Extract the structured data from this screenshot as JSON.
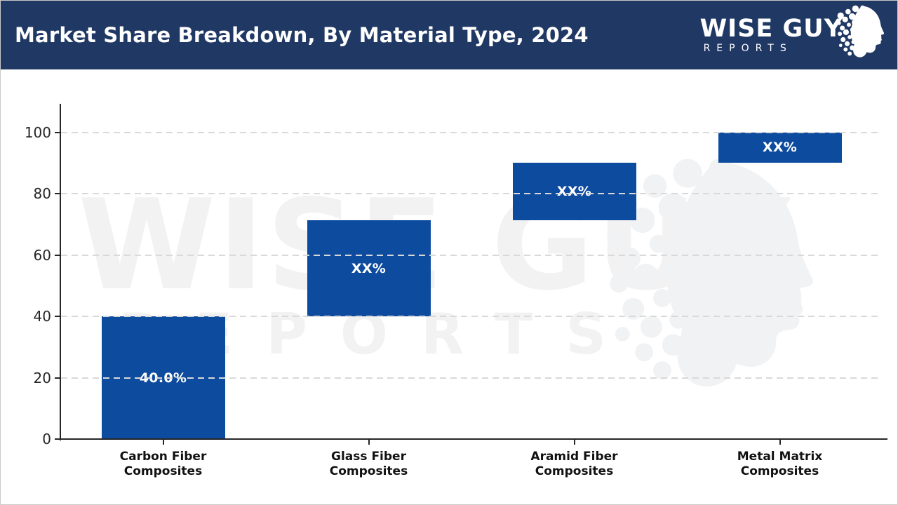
{
  "header": {
    "title": "Market Share Breakdown, By Material Type, 2024",
    "bg_color": "#203864",
    "brand": {
      "name": "WISE GUY",
      "sub": "REPORTS"
    }
  },
  "watermark": {
    "line1": "WISE GUY",
    "line2": "REPORTS"
  },
  "chart_data": {
    "type": "bar",
    "variant": "floating-waterfall",
    "title": "Market Share Breakdown, By Material Type, 2024",
    "categories": [
      "Carbon Fiber\nComposites",
      "Glass Fiber\nComposites",
      "Aramid Fiber\nComposites",
      "Metal Matrix\nComposites"
    ],
    "segments": [
      {
        "category": "Carbon Fiber\nComposites",
        "start": 0,
        "end": 40,
        "label": "40.0%"
      },
      {
        "category": "Glass Fiber\nComposites",
        "start": 40,
        "end": 71.3,
        "label": "XX%"
      },
      {
        "category": "Aramid Fiber\nComposites",
        "start": 71.3,
        "end": 90,
        "label": "XX%"
      },
      {
        "category": "Metal Matrix\nComposites",
        "start": 90,
        "end": 100,
        "label": "XX%"
      }
    ],
    "xlabel": "",
    "ylabel": "",
    "yticks": [
      0,
      20,
      40,
      60,
      80,
      100
    ],
    "ylim": [
      0,
      109
    ],
    "grid": "horizontal-dashed",
    "legend": "none",
    "bar_color": "#0d4b9f",
    "bar_label_color": "#ffffff",
    "axis_color": "#262626",
    "grid_color": "#d9d9d9"
  }
}
